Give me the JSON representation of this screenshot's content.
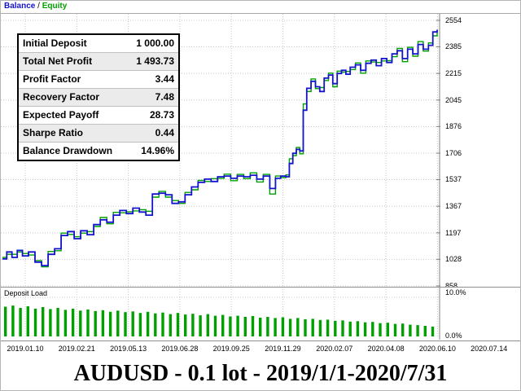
{
  "legend": {
    "balance": "Balance",
    "separator": " / ",
    "equity": "Equity"
  },
  "stats_table": {
    "rows": [
      {
        "label": "Initial Deposit",
        "value": "1 000.00"
      },
      {
        "label": "Total Net Profit",
        "value": "1 493.73"
      },
      {
        "label": "Profit Factor",
        "value": "3.44"
      },
      {
        "label": "Recovery Factor",
        "value": "7.48"
      },
      {
        "label": "Expected Payoff",
        "value": "28.73"
      },
      {
        "label": "Sharpe Ratio",
        "value": "0.44"
      },
      {
        "label": "Balance Drawdown",
        "value": "14.96%"
      }
    ]
  },
  "chart_data": [
    {
      "type": "line",
      "name": "balance-equity-curve",
      "grid": true,
      "grid_color": "#C8C8C8",
      "legend_position": "top-left",
      "ylim": [
        858,
        2554
      ],
      "y_ticks": [
        2554,
        2385,
        2215,
        2045,
        1876,
        1706,
        1537,
        1367,
        1197,
        1028,
        858
      ],
      "x_tick_labels": [
        "2019.01.10",
        "2019.02.21",
        "2019.05.13",
        "2019.06.28",
        "2019.09.25",
        "2019.11.29",
        "2020.02.07",
        "2020.04.08",
        "2020.06.10",
        "2020.07.14"
      ],
      "x": [
        0,
        0.01,
        0.022,
        0.034,
        0.046,
        0.06,
        0.075,
        0.09,
        0.105,
        0.12,
        0.135,
        0.15,
        0.165,
        0.18,
        0.195,
        0.21,
        0.225,
        0.24,
        0.255,
        0.27,
        0.285,
        0.3,
        0.315,
        0.33,
        0.345,
        0.36,
        0.375,
        0.39,
        0.405,
        0.42,
        0.435,
        0.45,
        0.465,
        0.48,
        0.495,
        0.51,
        0.525,
        0.54,
        0.555,
        0.57,
        0.585,
        0.6,
        0.615,
        0.628,
        0.64,
        0.652,
        0.66,
        0.668,
        0.676,
        0.684,
        0.692,
        0.7,
        0.71,
        0.72,
        0.73,
        0.74,
        0.75,
        0.76,
        0.77,
        0.78,
        0.79,
        0.8,
        0.812,
        0.824,
        0.836,
        0.848,
        0.86,
        0.872,
        0.884,
        0.896,
        0.908,
        0.92,
        0.932,
        0.944,
        0.956,
        0.968,
        0.98,
        0.99,
        1
      ],
      "series": [
        {
          "name": "Balance",
          "color": "#1414CC",
          "values": [
            1030,
            1075,
            1040,
            1085,
            1050,
            1075,
            1010,
            988,
            1060,
            1095,
            1180,
            1205,
            1160,
            1210,
            1185,
            1250,
            1280,
            1265,
            1310,
            1340,
            1320,
            1355,
            1330,
            1310,
            1445,
            1450,
            1440,
            1385,
            1395,
            1440,
            1490,
            1520,
            1540,
            1525,
            1555,
            1560,
            1545,
            1560,
            1555,
            1565,
            1540,
            1560,
            1480,
            1545,
            1560,
            1555,
            1640,
            1705,
            1730,
            1720,
            1980,
            2120,
            2165,
            2130,
            2100,
            2185,
            2205,
            2150,
            2215,
            2235,
            2210,
            2255,
            2270,
            2235,
            2280,
            2300,
            2265,
            2310,
            2285,
            2340,
            2360,
            2310,
            2370,
            2340,
            2400,
            2370,
            2395,
            2480,
            2494
          ]
        },
        {
          "name": "Equity",
          "color": "#00A000",
          "values": [
            1040,
            1060,
            1060,
            1075,
            1065,
            1055,
            1020,
            980,
            1078,
            1083,
            1195,
            1187,
            1172,
            1195,
            1205,
            1238,
            1295,
            1255,
            1328,
            1325,
            1332,
            1337,
            1345,
            1335,
            1425,
            1462,
            1425,
            1403,
            1385,
            1455,
            1472,
            1532,
            1525,
            1543,
            1545,
            1572,
            1530,
            1570,
            1543,
            1580,
            1522,
            1570,
            1445,
            1560,
            1550,
            1567,
            1670,
            1690,
            1742,
            1702,
            2020,
            2100,
            2180,
            2118,
            2125,
            2170,
            2217,
            2130,
            2230,
            2223,
            2228,
            2240,
            2282,
            2217,
            2295,
            2288,
            2285,
            2295,
            2297,
            2322,
            2375,
            2290,
            2382,
            2325,
            2418,
            2358,
            2410,
            2455,
            2494
          ]
        }
      ]
    },
    {
      "type": "bar",
      "name": "deposit-load",
      "title": "Deposit Load",
      "color": "#00A000",
      "ylim": [
        0,
        10
      ],
      "y_tick_labels": [
        "10.0%",
        "0.0%"
      ],
      "values": [
        7.6,
        7.9,
        7.3,
        7.7,
        7.1,
        7.5,
        7.0,
        7.3,
        6.8,
        7.1,
        6.6,
        6.9,
        6.5,
        6.7,
        6.3,
        6.6,
        6.2,
        6.4,
        6.0,
        6.3,
        5.9,
        6.1,
        5.7,
        6.0,
        5.6,
        5.8,
        5.4,
        5.7,
        5.3,
        5.5,
        5.1,
        5.3,
        5.0,
        5.2,
        4.8,
        5.0,
        4.7,
        4.9,
        4.5,
        4.7,
        4.4,
        4.5,
        4.2,
        4.3,
        4.0,
        4.1,
        3.8,
        3.9,
        3.6,
        3.7,
        3.4,
        3.5,
        3.2,
        3.3,
        3.0,
        2.9,
        2.7,
        2.5
      ]
    }
  ],
  "footer": {
    "title": "AUDUSD - 0.1 lot - 2019/1/1-2020/7/31"
  }
}
